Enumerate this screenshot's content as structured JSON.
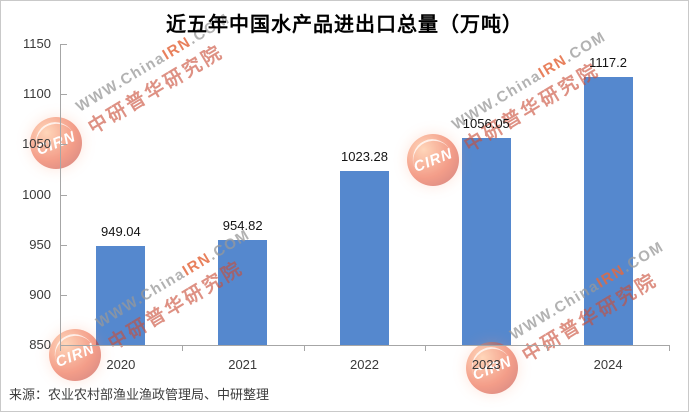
{
  "title": "近五年中国水产品进出口总量（万吨）",
  "source": "来源：农业农村部渔业渔政管理局、中研整理",
  "watermark": {
    "logo_text": "CIRN",
    "url_prefix": "WWW.China",
    "url_mid": "IRN",
    "url_suffix": ".COM",
    "cn_text": "中研普华研究院"
  },
  "chart_data": {
    "type": "bar",
    "title": "近五年中国水产品进出口总量（万吨）",
    "categories": [
      "2020",
      "2021",
      "2022",
      "2023",
      "2024"
    ],
    "values": [
      949.04,
      954.82,
      1023.28,
      1056.05,
      1117.2
    ],
    "xlabel": "",
    "ylabel": "",
    "ylim": [
      850,
      1150
    ],
    "yticks": [
      850,
      900,
      950,
      1000,
      1050,
      1100,
      1150
    ],
    "bar_color": "#5588CE",
    "axis_color": "#a6a6a6",
    "label_color": "#141414",
    "grid": false,
    "legend": false
  }
}
